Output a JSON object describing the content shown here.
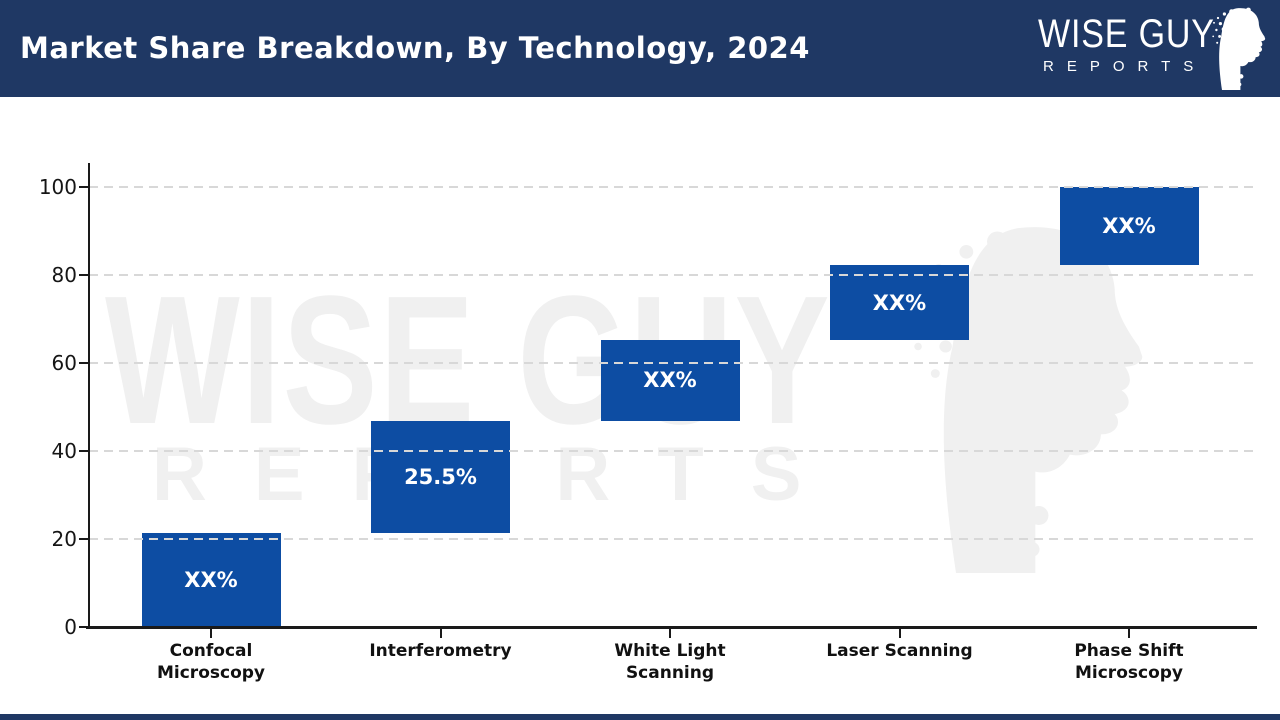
{
  "header": {
    "title": "Market Share Breakdown, By Technology, 2024",
    "logo": {
      "primary": "WISE GUY",
      "secondary": "REPORTS"
    }
  },
  "watermark": {
    "primary": "WISE GUY",
    "secondary": "REPORTS"
  },
  "chart_data": {
    "type": "bar",
    "variant": "floating-segment (waterfall-style cumulative market share)",
    "title": "Market Share Breakdown, By Technology, 2024",
    "xlabel": "",
    "ylabel": "",
    "categories": [
      "Confocal\nMicroscopy",
      "Interferometry",
      "White Light\nScanning",
      "Laser Scanning",
      "Phase Shift\nMicroscopy"
    ],
    "segments": [
      {
        "category": "Confocal Microscopy",
        "start": 0,
        "end": 21.4,
        "span": 21.4,
        "label": "XX%"
      },
      {
        "category": "Interferometry",
        "start": 21.4,
        "end": 46.9,
        "span": 25.5,
        "label": "25.5%"
      },
      {
        "category": "White Light Scanning",
        "start": 46.9,
        "end": 65.2,
        "span": 18.3,
        "label": "XX%"
      },
      {
        "category": "Laser Scanning",
        "start": 65.2,
        "end": 82.3,
        "span": 17.1,
        "label": "XX%"
      },
      {
        "category": "Phase Shift Microscopy",
        "start": 82.3,
        "end": 100,
        "span": 17.7,
        "label": "XX%"
      }
    ],
    "yticks": [
      0,
      20,
      40,
      60,
      80,
      100
    ],
    "ylim": [
      0,
      106
    ],
    "grid": "horizontal dashed gridlines, drawn above bars",
    "legend": "none"
  },
  "colors": {
    "header_bg": "#1f3864",
    "footer_bg": "#1f3864",
    "bar": "#0d4da3",
    "bar_label": "#ffffff",
    "grid": "#d8d8d8",
    "axis": "#1a1a1a",
    "watermark": "#f0f0f0",
    "background": "#ffffff"
  }
}
